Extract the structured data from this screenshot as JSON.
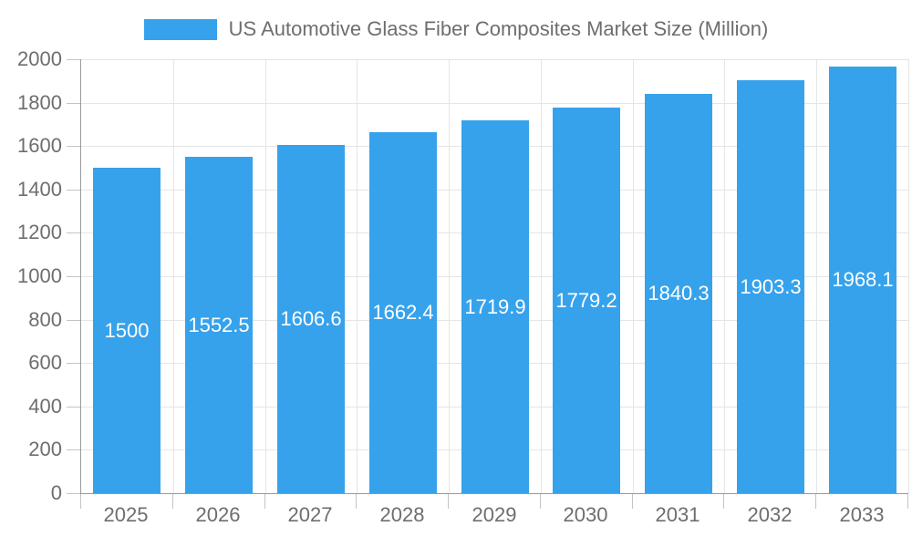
{
  "chart_data": {
    "type": "bar",
    "title": "US Automotive Glass Fiber Composites Market Size (Million)",
    "categories": [
      "2025",
      "2026",
      "2027",
      "2028",
      "2029",
      "2030",
      "2031",
      "2032",
      "2033"
    ],
    "values": [
      1500,
      1552.5,
      1606.6,
      1662.4,
      1719.9,
      1779.2,
      1840.3,
      1903.3,
      1968.1
    ],
    "series": [
      {
        "name": "US Automotive Glass Fiber Composites Market Size (Million)",
        "values": [
          1500,
          1552.5,
          1606.6,
          1662.4,
          1719.9,
          1779.2,
          1840.3,
          1903.3,
          1968.1
        ]
      }
    ],
    "xlabel": "",
    "ylabel": "",
    "ylim": [
      0,
      2000
    ],
    "ytick_step": 200,
    "ytick_labels": [
      "0",
      "200",
      "400",
      "600",
      "800",
      "1000",
      "1200",
      "1400",
      "1600",
      "1800",
      "2000"
    ],
    "grid": true,
    "legend_position": "top",
    "bar_labels_visible": true,
    "bar_label_position": "center",
    "colors": {
      "bar": "#36A2EB",
      "grid": "#E5E5E5",
      "axis": "#999999",
      "tick": "#C4C4C4",
      "label_text": "#6E6E6E",
      "bar_label": "#FFFFFF",
      "background": "#FFFFFF"
    }
  }
}
